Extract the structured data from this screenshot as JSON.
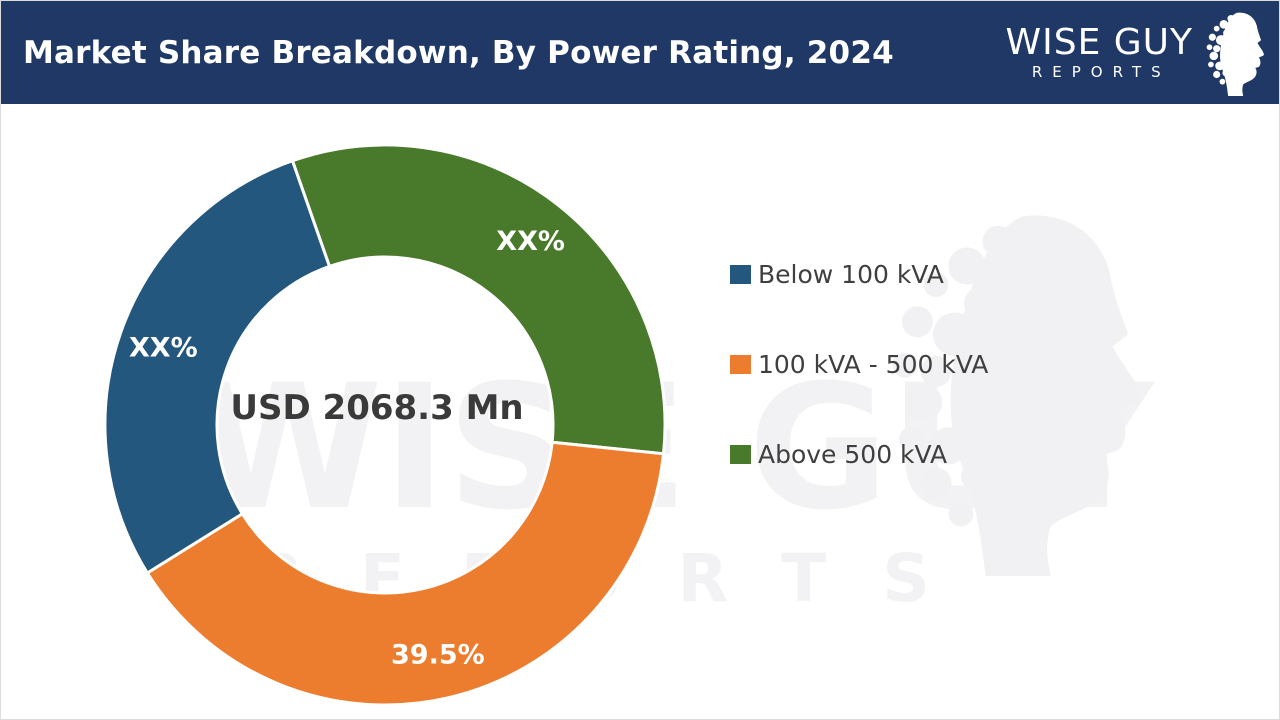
{
  "header": {
    "title": "Market Share Breakdown, By Power Rating, 2024",
    "logo": {
      "line1": "WISE GUY",
      "line2": "REPORTS"
    }
  },
  "chart_data": {
    "type": "pie",
    "subtype": "donut",
    "center_label": "USD 2068.3 Mn",
    "slices": [
      {
        "label": "Below 100 kVA",
        "display_value": "XX%",
        "percent": 28.5,
        "color": "#24577d"
      },
      {
        "label": "100 kVA - 500 kVA",
        "display_value": "39.5%",
        "percent": 39.5,
        "color": "#ed7d2e"
      },
      {
        "label": "Above 500 kVA",
        "display_value": "XX%",
        "percent": 32.0,
        "color": "#49792a"
      }
    ],
    "start_angle_deg": -19.3,
    "draw_order": [
      2,
      1,
      0
    ],
    "legend_position": "right"
  },
  "watermark": {
    "line1": "WISE GUY",
    "line2": "REPORTS"
  },
  "colors": {
    "header_bg": "#1f3865",
    "title_text": "#ffffff",
    "legend_text": "#3f3f3f",
    "center_text": "#3a3a3a",
    "watermark": "#f2f2f4"
  }
}
